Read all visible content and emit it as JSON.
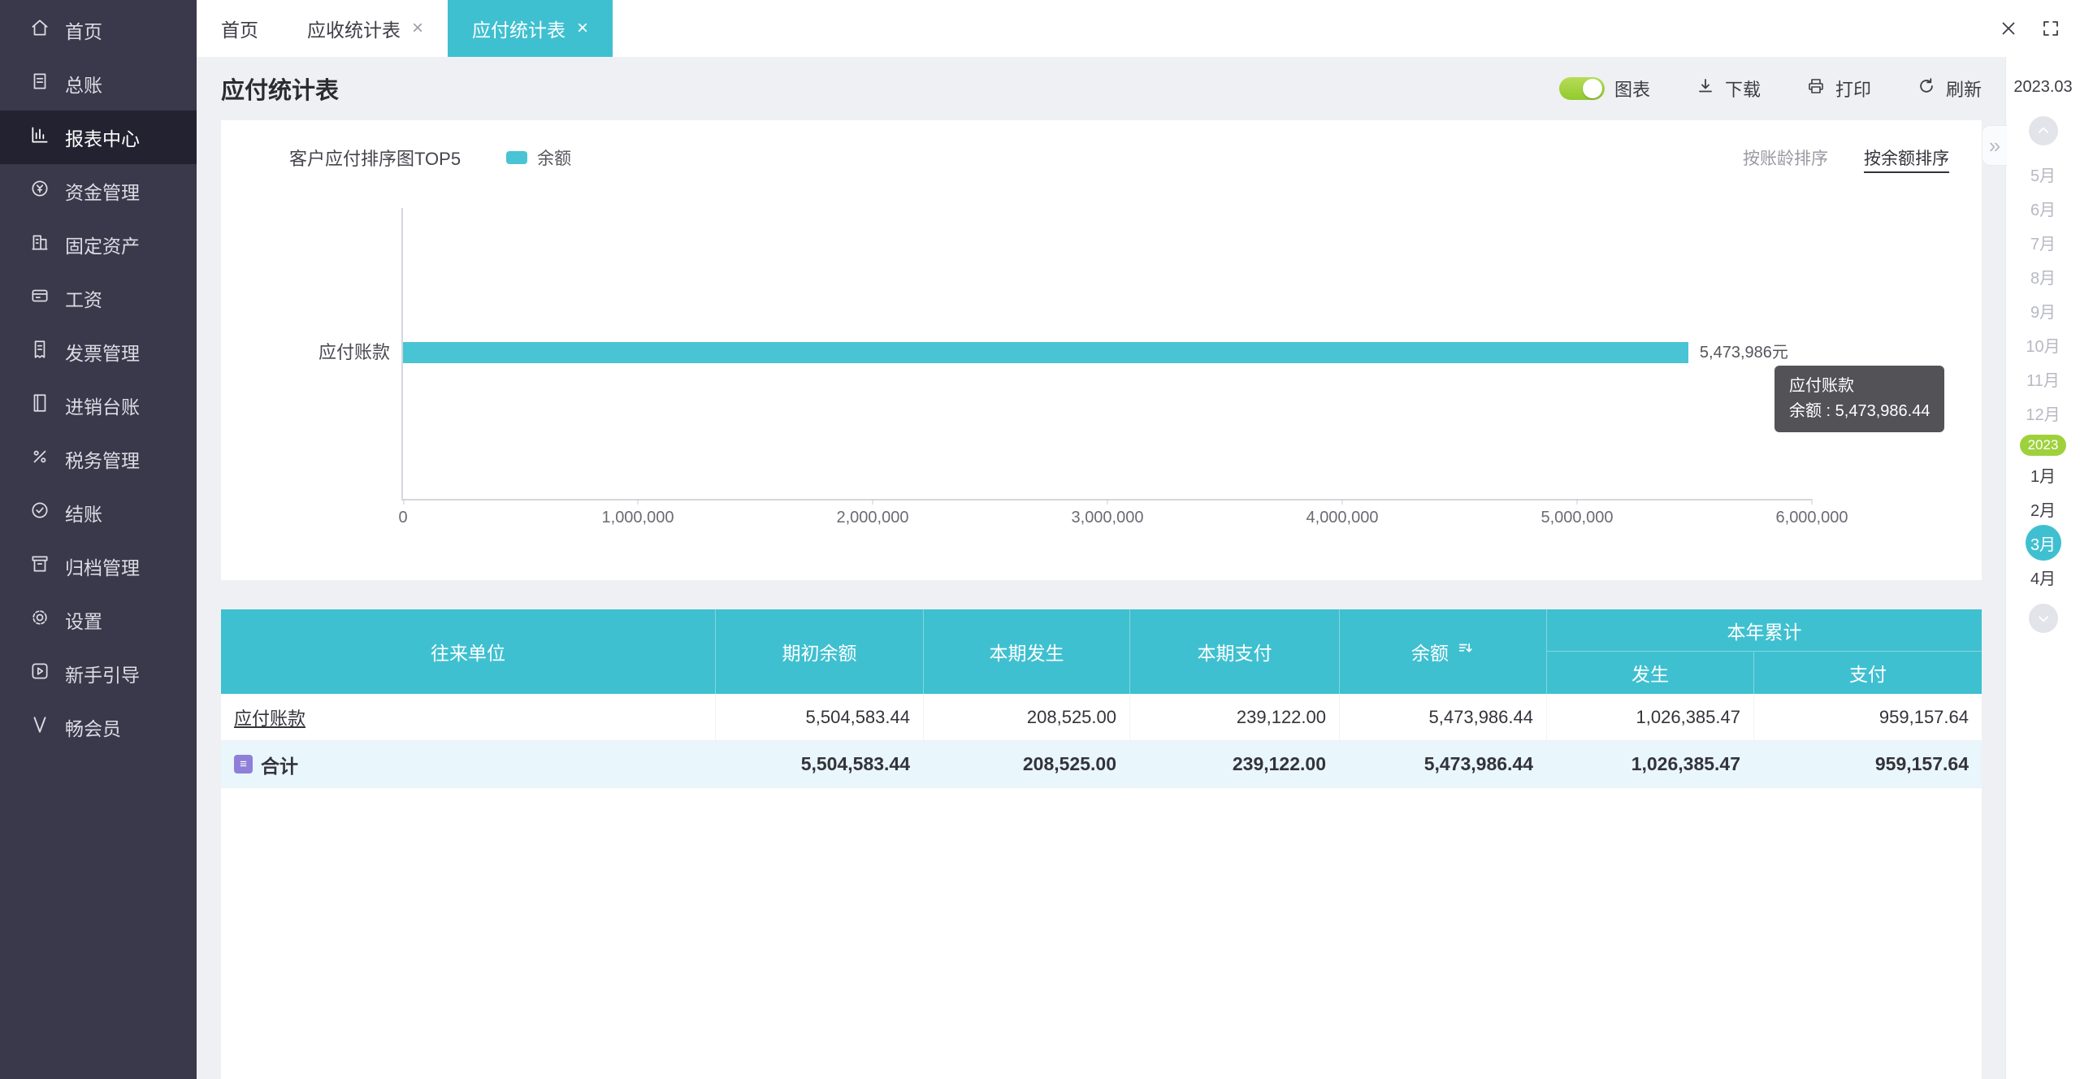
{
  "sidebar": {
    "items": [
      {
        "label": "首页"
      },
      {
        "label": "总账"
      },
      {
        "label": "报表中心"
      },
      {
        "label": "资金管理"
      },
      {
        "label": "固定资产"
      },
      {
        "label": "工资"
      },
      {
        "label": "发票管理"
      },
      {
        "label": "进销台账"
      },
      {
        "label": "税务管理"
      },
      {
        "label": "结账"
      },
      {
        "label": "归档管理"
      },
      {
        "label": "设置"
      },
      {
        "label": "新手引导"
      },
      {
        "label": "畅会员"
      }
    ]
  },
  "tabs": {
    "items": [
      {
        "label": "首页"
      },
      {
        "label": "应收统计表",
        "close": "×"
      },
      {
        "label": "应付统计表",
        "close": "×"
      }
    ]
  },
  "toolbar": {
    "title": "应付统计表",
    "chart_toggle_label": "图表",
    "download_label": "下载",
    "print_label": "打印",
    "refresh_label": "刷新"
  },
  "chart": {
    "title": "客户应付排序图TOP5",
    "legend_label": "余额",
    "sort_by_age": "按账龄排序",
    "sort_by_balance": "按余额排序",
    "category_label": "应付账款",
    "bar_value_label": "5,473,986元",
    "tooltip_title": "应付账款",
    "tooltip_value": "余额 : 5,473,986.44"
  },
  "chart_data": {
    "type": "bar",
    "orientation": "horizontal",
    "title": "客户应付排序图TOP5",
    "categories": [
      "应付账款"
    ],
    "series": [
      {
        "name": "余额",
        "values": [
          5473986.44
        ]
      }
    ],
    "xlim": [
      0,
      6000000
    ],
    "x_ticks": [
      "0",
      "1,000,000",
      "2,000,000",
      "3,000,000",
      "4,000,000",
      "5,000,000",
      "6,000,000"
    ],
    "bar_color": "#49c4d4",
    "legend_position": "top",
    "grid": false
  },
  "table": {
    "headers": {
      "unit": "往来单位",
      "opening": "期初余额",
      "current_occurred": "本期发生",
      "current_paid": "本期支付",
      "balance": "余额",
      "ytd": "本年累计",
      "ytd_occurred": "发生",
      "ytd_paid": "支付"
    },
    "rows": [
      {
        "unit": "应付账款",
        "opening": "5,504,583.44",
        "occurred": "208,525.00",
        "paid": "239,122.00",
        "balance": "5,473,986.44",
        "ytd_occurred": "1,026,385.47",
        "ytd_paid": "959,157.64"
      }
    ],
    "total": {
      "icon": "≡",
      "label": "合计",
      "opening": "5,504,583.44",
      "occurred": "208,525.00",
      "paid": "239,122.00",
      "balance": "5,473,986.44",
      "ytd_occurred": "1,026,385.47",
      "ytd_paid": "959,157.64"
    }
  },
  "calendar": {
    "period": "2023.03",
    "collapse": "»",
    "months_prev_year": [
      "5月",
      "6月",
      "7月",
      "8月",
      "9月",
      "10月",
      "11月",
      "12月"
    ],
    "year_badge": "2023",
    "months_current_year": [
      "1月",
      "2月",
      "3月",
      "4月"
    ],
    "active_month": "3月"
  },
  "colors": {
    "accent_teal": "#3fc0d0",
    "toggle_green": "#9ed13c",
    "sidebar_bg": "#3a394b"
  }
}
